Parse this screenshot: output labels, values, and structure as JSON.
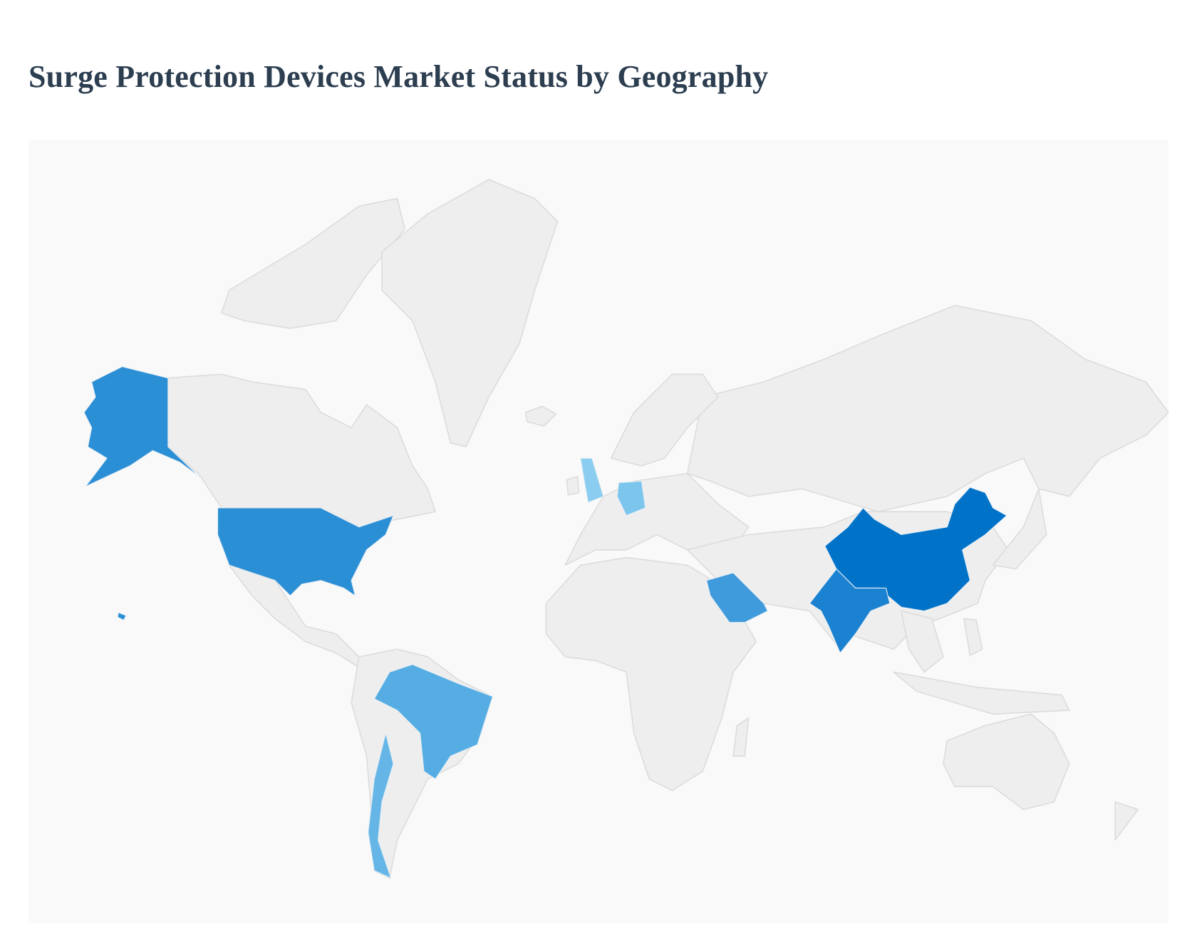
{
  "title": "Surge Protection Devices Market Status by Geography",
  "chart_data": {
    "type": "choropleth",
    "title": "Surge Protection Devices Market Status by Geography",
    "base_land_color": "#eeeeee",
    "background_color": "#f9f9f9",
    "highlighted_regions": [
      {
        "name": "China",
        "shade_rank": 1,
        "color": "#0073c9"
      },
      {
        "name": "India",
        "shade_rank": 2,
        "color": "#1a82d0"
      },
      {
        "name": "United States",
        "shade_rank": 3,
        "color": "#2b8fd6"
      },
      {
        "name": "Saudi Arabia",
        "shade_rank": 4,
        "color": "#3f9bdb"
      },
      {
        "name": "Brazil",
        "shade_rank": 5,
        "color": "#55ade3"
      },
      {
        "name": "Chile",
        "shade_rank": 6,
        "color": "#65b6e7"
      },
      {
        "name": "Germany",
        "shade_rank": 7,
        "color": "#7cc6ee"
      },
      {
        "name": "United Kingdom",
        "shade_rank": 8,
        "color": "#8acdf0"
      }
    ],
    "legend": "none"
  }
}
